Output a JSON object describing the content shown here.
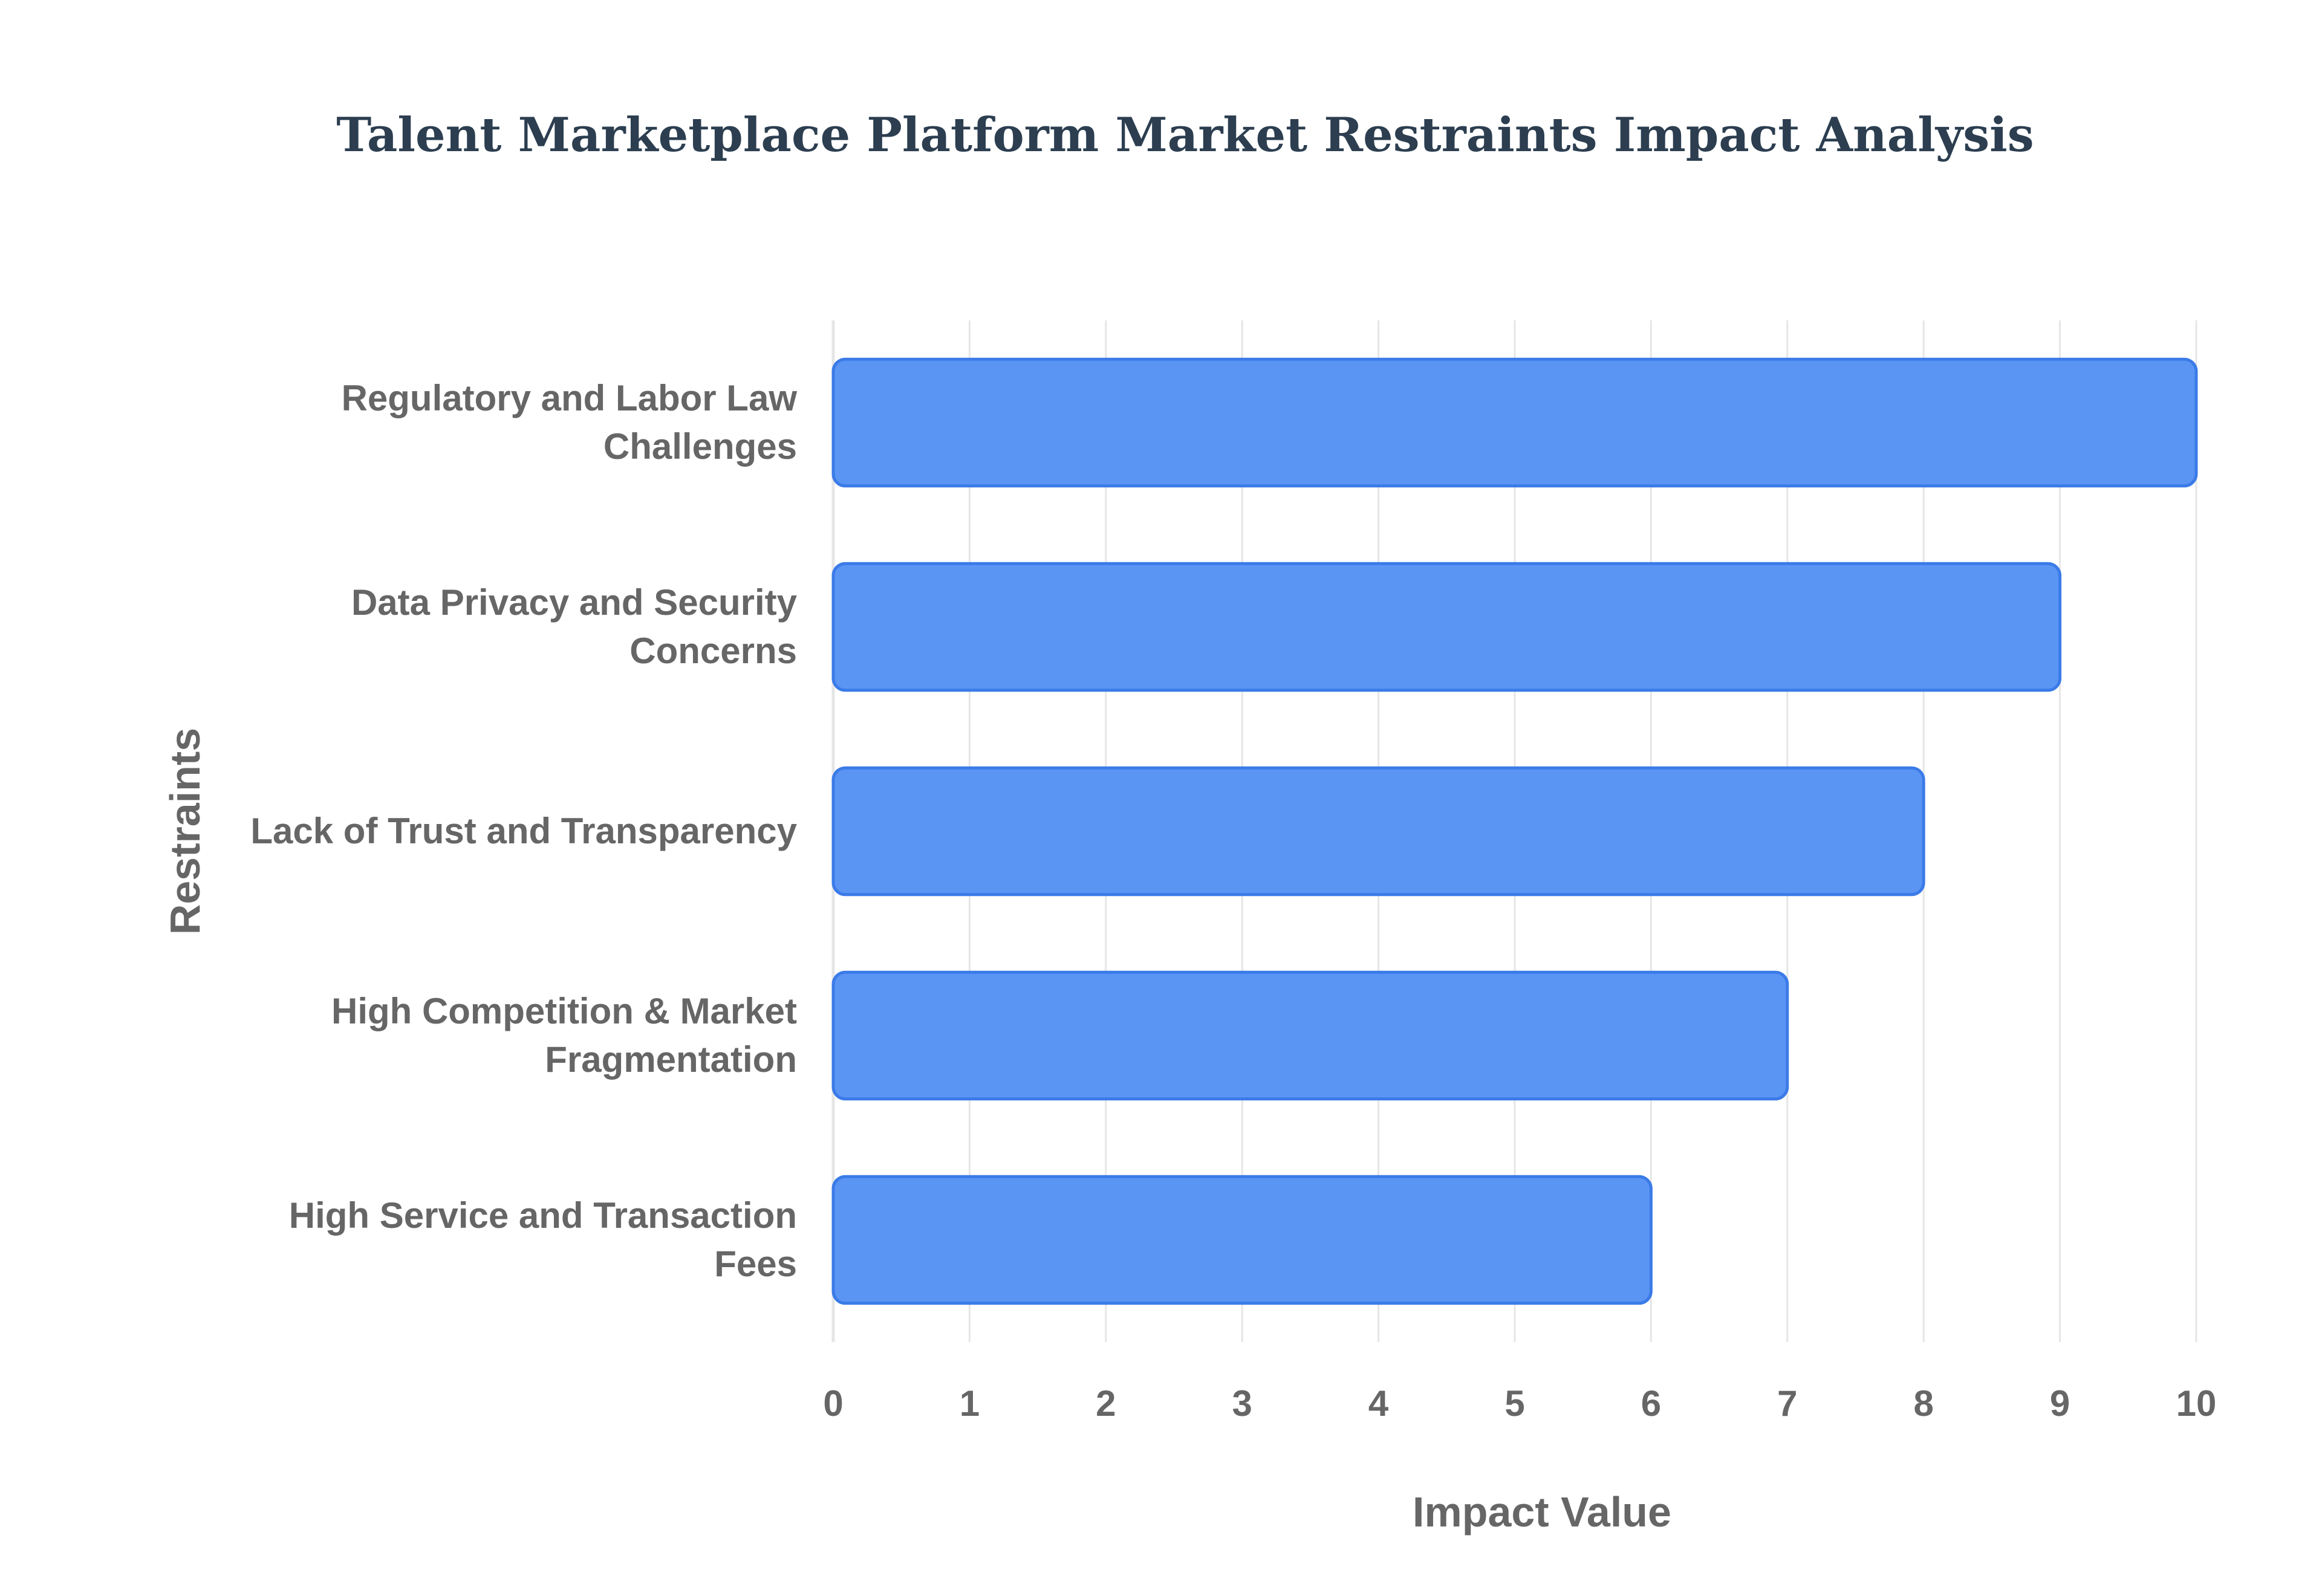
{
  "chart_data": {
    "type": "bar",
    "orientation": "horizontal",
    "title": "Talent Marketplace Platform Market Restraints Impact Analysis",
    "xlabel": "Impact Value",
    "ylabel": "Restraints",
    "categories": [
      [
        "Regulatory and Labor Law",
        "Challenges"
      ],
      [
        "Data Privacy and Security",
        "Concerns"
      ],
      [
        "Lack of Trust and Transparency"
      ],
      [
        "High Competition & Market",
        "Fragmentation"
      ],
      [
        "High Service and Transaction",
        "Fees"
      ]
    ],
    "values": [
      10,
      9,
      8,
      7,
      6
    ],
    "xlim": [
      0,
      10
    ],
    "xticks": [
      "0",
      "1",
      "2",
      "3",
      "4",
      "5",
      "6",
      "7",
      "8",
      "9",
      "10"
    ],
    "grid": true,
    "legend": "none"
  },
  "colors": {
    "bar_fill": "#5b95f4",
    "bar_stroke": "#3b7be8",
    "grid": "#e6e6e6",
    "title": "#2c3e50",
    "label": "#666666",
    "background": "#ffffff"
  }
}
